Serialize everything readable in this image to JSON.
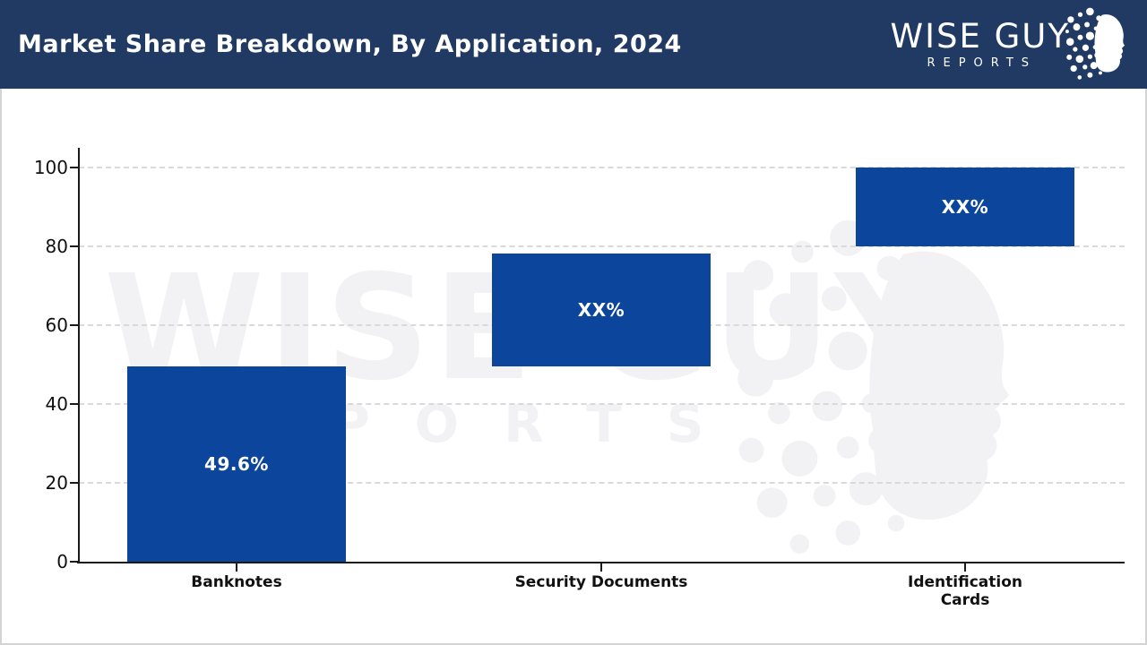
{
  "header": {
    "title": "Market Share Breakdown, By Application, 2024",
    "logo": {
      "wordmark": "WISE GUY",
      "subtitle": "REPORTS"
    }
  },
  "watermark": {
    "wordmark": "WISE GUY",
    "subtitle": "REPORTS"
  },
  "colors": {
    "header_bg": "#203A64",
    "bar": "#0B459C",
    "bar_label": "#FFFFFF",
    "axis": "#1A1A1A",
    "grid": "#D9D9D9",
    "watermark": "#F2F2F5",
    "text": "#111111"
  },
  "chart_data": {
    "type": "bar",
    "subtype": "floating-stacked-breakdown",
    "title": "Market Share Breakdown, By Application, 2024",
    "categories": [
      "Banknotes",
      "Security Documents",
      "Identification\nCards"
    ],
    "segments": [
      {
        "category": "Banknotes",
        "from": 0,
        "to": 49.6,
        "label": "49.6%"
      },
      {
        "category": "Security Documents",
        "from": 49.6,
        "to": 78.2,
        "label": "XX%"
      },
      {
        "category": "Identification\nCards",
        "from": 80,
        "to": 100,
        "label": "XX%"
      }
    ],
    "ylim": [
      0,
      100
    ],
    "yticks": [
      0,
      20,
      40,
      60,
      80,
      100
    ],
    "xlabel": "",
    "ylabel": "",
    "grid": "horizontal-dashed",
    "legend": "none"
  }
}
